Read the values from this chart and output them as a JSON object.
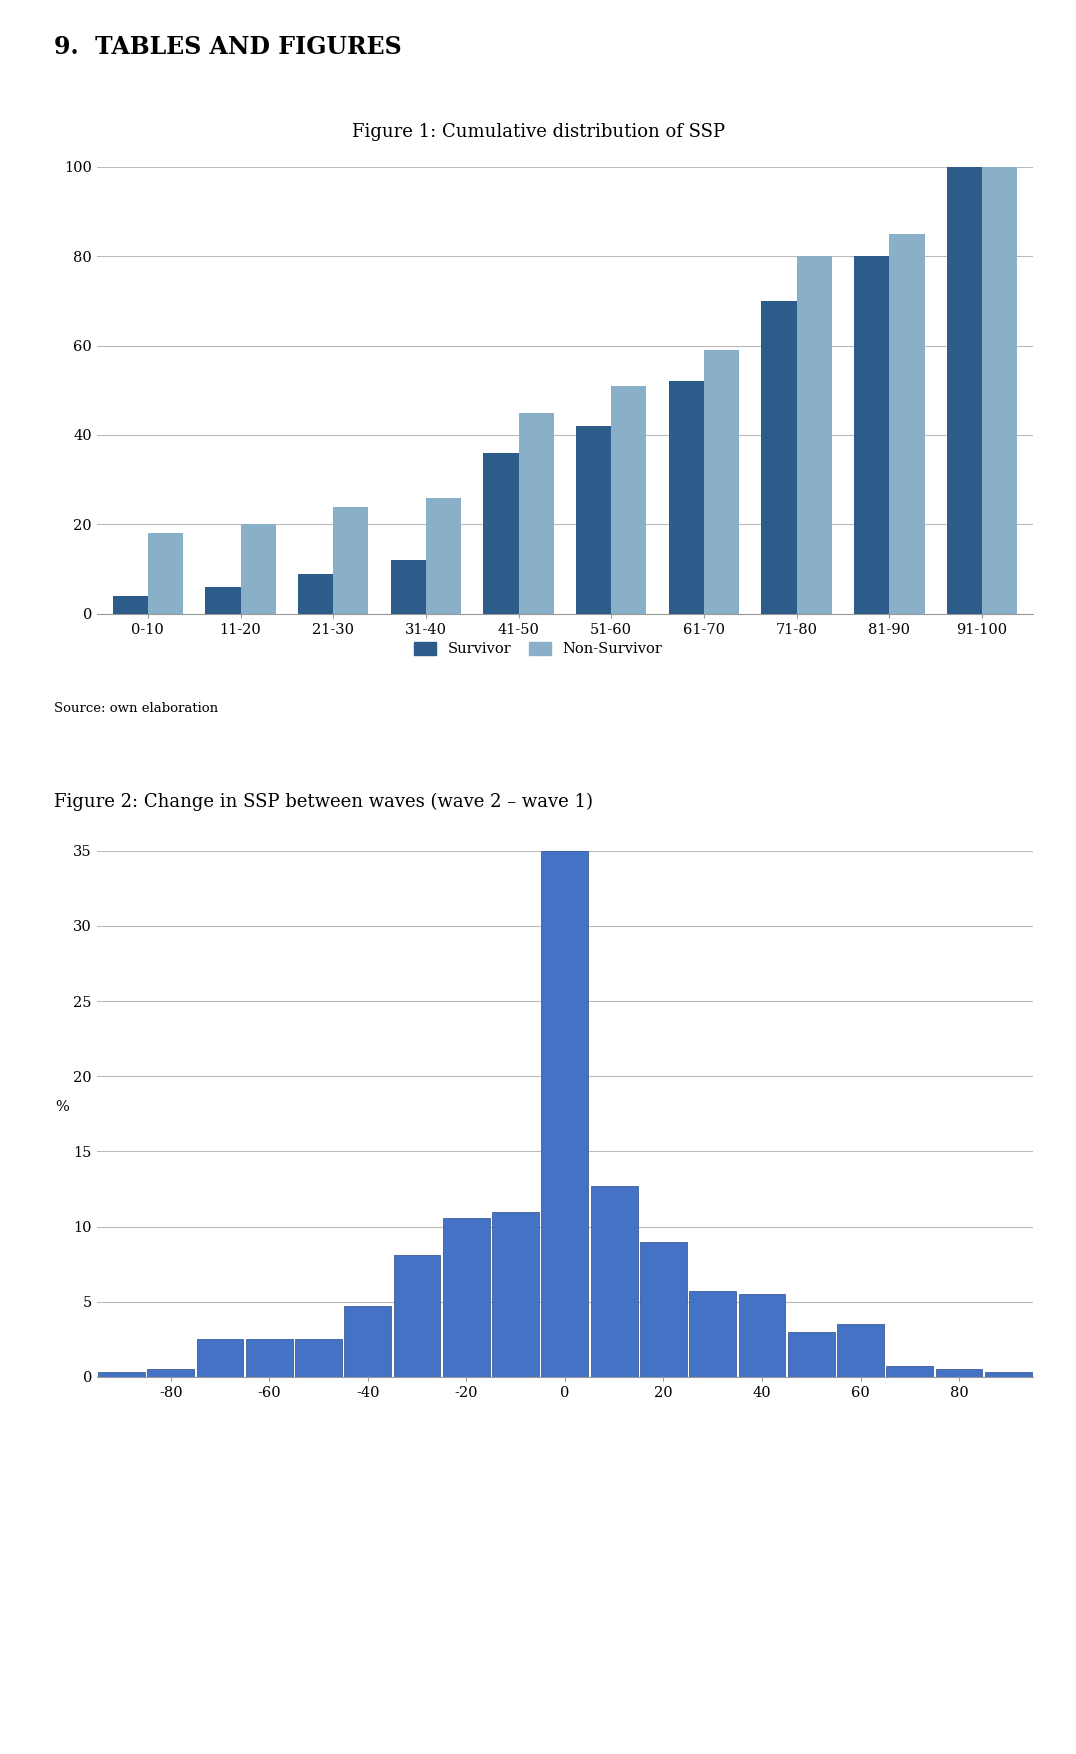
{
  "page_title": "9.  TABLES AND FIGURES",
  "fig1_title": "Figure 1: Cumulative distribution of SSP",
  "fig1_categories": [
    "0-10",
    "11-20",
    "21-30",
    "31-40",
    "41-50",
    "51-60",
    "61-70",
    "71-80",
    "81-90",
    "91-100"
  ],
  "fig1_survivor": [
    4,
    6,
    9,
    12,
    36,
    42,
    52,
    70,
    80,
    100
  ],
  "fig1_non_survivor": [
    18,
    20,
    24,
    26,
    45,
    51,
    59,
    80,
    85,
    100
  ],
  "fig1_survivor_color": "#2E5C8A",
  "fig1_non_survivor_color": "#8AAFC8",
  "fig1_ylim": [
    0,
    100
  ],
  "fig1_yticks": [
    0,
    20,
    40,
    60,
    80,
    100
  ],
  "fig1_source": "Source: own elaboration",
  "fig2_title": "Figure 2: Change in SSP between waves (wave 2 – wave 1)",
  "fig2_x_labels": [
    "-80",
    "-60",
    "-40",
    "-20",
    "0",
    "20",
    "40",
    "60",
    "80"
  ],
  "fig2_x_positions": [
    -80,
    -60,
    -40,
    -20,
    0,
    20,
    40,
    60,
    80
  ],
  "fig2_bar_centers": [
    -90,
    -80,
    -70,
    -60,
    -50,
    -40,
    -30,
    -20,
    -10,
    0,
    10,
    20,
    30,
    40,
    50,
    60,
    70,
    80,
    90
  ],
  "fig2_bar_heights": [
    0.3,
    0.5,
    2.5,
    2.5,
    2.5,
    4.7,
    8.1,
    10.6,
    11.0,
    35.0,
    12.7,
    9.0,
    5.7,
    5.5,
    3.0,
    3.5,
    0.7,
    0.5,
    0.3
  ],
  "fig2_bar_color": "#4472C4",
  "fig2_bar_edge_color": "#2B4C8C",
  "fig2_ylim": [
    0,
    35
  ],
  "fig2_yticks": [
    0,
    5,
    10,
    15,
    20,
    25,
    30,
    35
  ],
  "fig2_ylabel": "%",
  "fig2_bar_width": 9.5,
  "background_color": "#FFFFFF",
  "grid_color": "#BBBBBB",
  "text_color": "#000000",
  "legend_survivor_label": "Survivor",
  "legend_non_survivor_label": "Non-Survivor"
}
